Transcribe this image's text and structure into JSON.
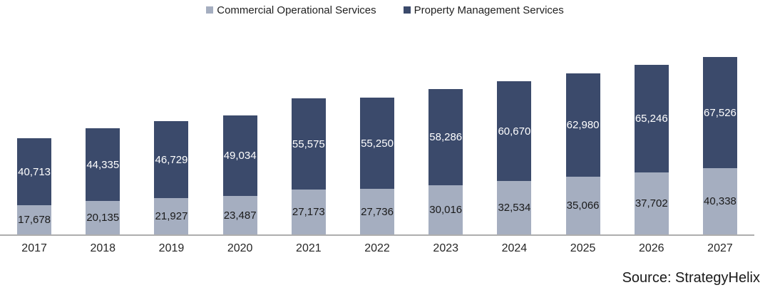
{
  "source": "Source: StrategyHelix",
  "chart_data": {
    "type": "bar",
    "stacked": true,
    "orientation": "vertical",
    "title": "",
    "xlabel": "",
    "ylabel": "",
    "legend_position": "top-center",
    "gridlines": false,
    "y_axis_visible": false,
    "ylim": [
      0,
      110000
    ],
    "categories": [
      "2017",
      "2018",
      "2019",
      "2020",
      "2021",
      "2022",
      "2023",
      "2024",
      "2025",
      "2026",
      "2027"
    ],
    "series": [
      {
        "name": "Commercial Operational Services",
        "color": "#a5aec0",
        "label_color": "#1a1a1a",
        "values": [
          17678,
          20135,
          21927,
          23487,
          27173,
          27736,
          30016,
          32534,
          35066,
          37702,
          40338
        ],
        "labels": [
          "17,678",
          "20,135",
          "21,927",
          "23,487",
          "27,173",
          "27,736",
          "30,016",
          "32,534",
          "35,066",
          "37,702",
          "40,338"
        ]
      },
      {
        "name": "Property Management Services",
        "color": "#3b4a6b",
        "label_color": "#ffffff",
        "values": [
          40713,
          44335,
          46729,
          49034,
          55575,
          55250,
          58286,
          60670,
          62980,
          65246,
          67526
        ],
        "labels": [
          "40,713",
          "44,335",
          "46,729",
          "49,034",
          "55,575",
          "55,250",
          "58,286",
          "60,670",
          "62,980",
          "65,246",
          "67,526"
        ]
      }
    ]
  }
}
